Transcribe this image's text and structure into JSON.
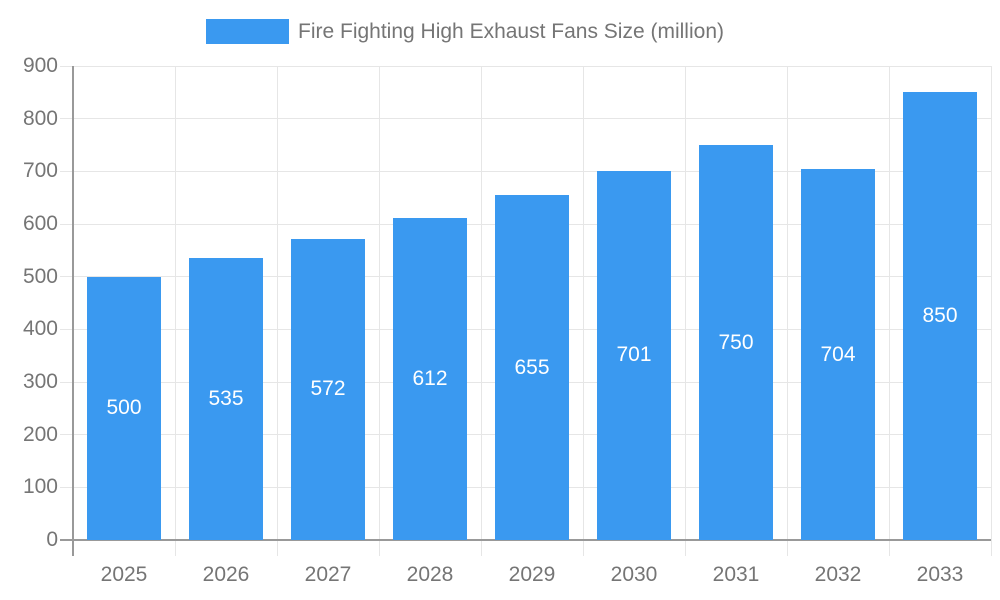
{
  "legend": {
    "label": "Fire Fighting High Exhaust Fans Size (million)",
    "swatch_color": "#3A99F0"
  },
  "chart_data": {
    "type": "bar",
    "title": "Fire Fighting High Exhaust Fans Size (million)",
    "categories": [
      "2025",
      "2026",
      "2027",
      "2028",
      "2029",
      "2030",
      "2031",
      "2032",
      "2033"
    ],
    "values": [
      500,
      535,
      572,
      612,
      655,
      701,
      750,
      704,
      850
    ],
    "xlabel": "",
    "ylabel": "",
    "ylim": [
      0,
      900
    ],
    "yticks": [
      0,
      100,
      200,
      300,
      400,
      500,
      600,
      700,
      800,
      900
    ],
    "grid": true,
    "legend_position": "top",
    "bar_color": "#3A99F0",
    "bar_label_color": "#ffffff",
    "grid_color": "#e6e6e6",
    "axis_color": "#999999",
    "text_color": "#757575"
  }
}
